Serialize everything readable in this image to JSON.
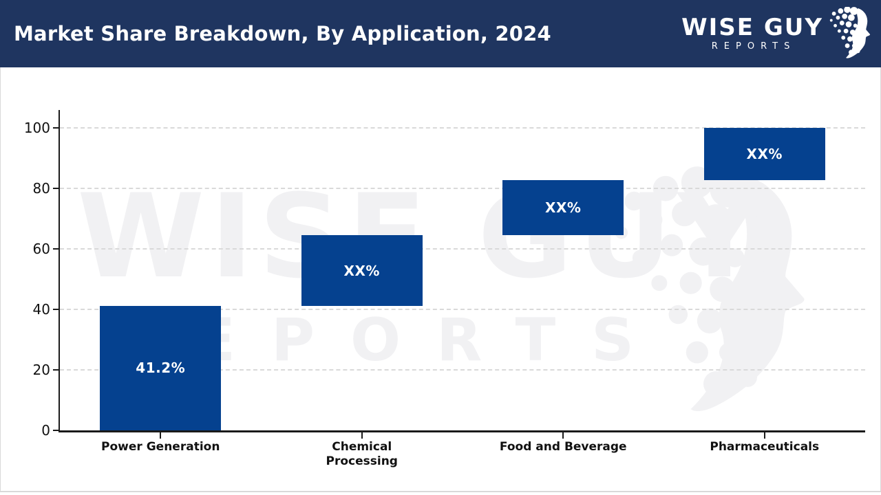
{
  "header": {
    "title": "Market Share Breakdown, By Application, 2024",
    "logo": {
      "name": "WISE GUY",
      "subtitle": "REPORTS"
    }
  },
  "watermark": {
    "line1": "WISE GUY",
    "line2": "REPORTS"
  },
  "colors": {
    "header_bg": "#1F3560",
    "header_text": "#FFFFFF",
    "bar": "#05418F",
    "bar_label": "#FFFFFF",
    "axis": "#1A1A1A",
    "tick_label": "#111111",
    "grid": "#D9D9D9",
    "watermark": "#F1F1F3",
    "page_bg": "#FFFFFF",
    "page_border": "#D9D9D9"
  },
  "chart_data": {
    "type": "bar",
    "subtype": "waterfall",
    "title": "Market Share Breakdown, By Application, 2024",
    "categories": [
      "Power Generation",
      "Chemical Processing",
      "Food and Beverage",
      "Pharmaceuticals"
    ],
    "categories_display": [
      "Power Generation",
      "Chemical\nProcessing",
      "Food and Beverage",
      "Pharmaceuticals"
    ],
    "segments": [
      {
        "category": "Power Generation",
        "start": 0,
        "end": 41.2,
        "label": "41.2%"
      },
      {
        "category": "Chemical Processing",
        "start": 41.2,
        "end": 64.5,
        "label": "XX%"
      },
      {
        "category": "Food and Beverage",
        "start": 64.5,
        "end": 82.8,
        "label": "XX%"
      },
      {
        "category": "Pharmaceuticals",
        "start": 82.8,
        "end": 100,
        "label": "XX%"
      }
    ],
    "xlabel": "",
    "ylabel": "",
    "yticks": [
      0,
      20,
      40,
      60,
      80,
      100
    ],
    "ylim": [
      0,
      106
    ],
    "grid": "horizontal-dashed",
    "legend": "none"
  }
}
